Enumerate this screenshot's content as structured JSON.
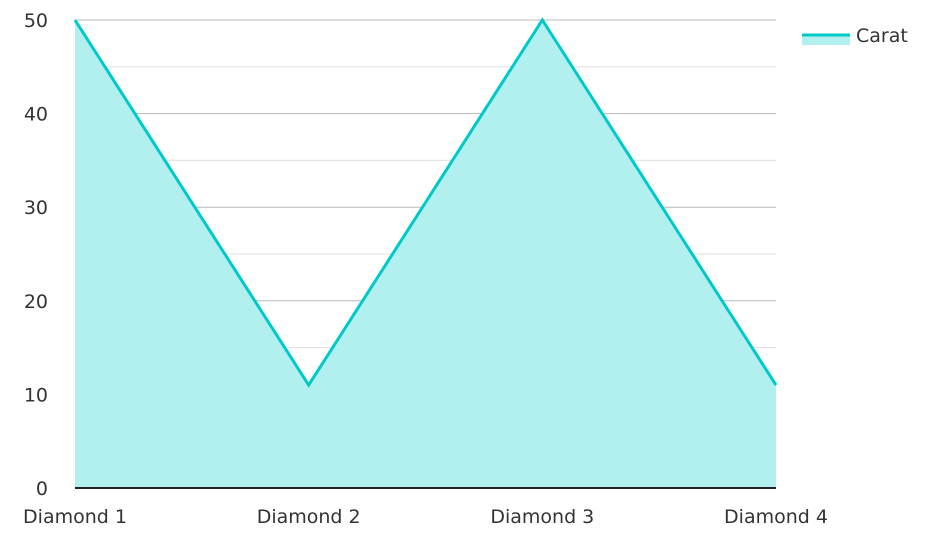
{
  "chart_data": {
    "type": "area",
    "categories": [
      "Diamond 1",
      "Diamond 2",
      "Diamond 3",
      "Diamond 4"
    ],
    "series": [
      {
        "name": "Carat",
        "values": [
          50,
          11,
          50,
          11
        ]
      }
    ],
    "ylim": [
      0,
      50
    ],
    "yticks": [
      0,
      10,
      20,
      30,
      40,
      50
    ],
    "grid": true,
    "legend": "top-right",
    "colors": {
      "line": "#00c9c9",
      "fill": "#b2efef",
      "grid_major": "#b8b8b8",
      "grid_minor": "#e0e0e0",
      "axis": "#222222"
    }
  }
}
